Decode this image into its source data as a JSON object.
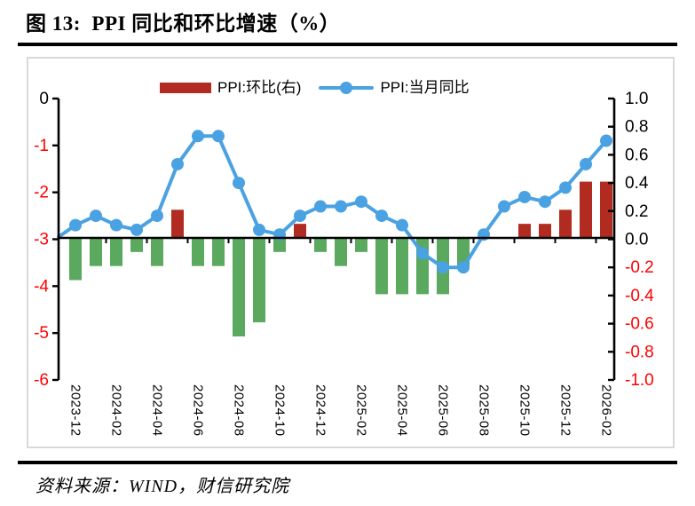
{
  "title": "图 13:  PPI 同比和环比增速（%）",
  "source": "资料来源：WIND，财信研究院",
  "legend": {
    "items": [
      {
        "label": "PPI:环比(右)",
        "type": "bar",
        "color": "#b22b20"
      },
      {
        "label": "PPI:当月同比",
        "type": "line",
        "color": "#4aa2e2"
      }
    ]
  },
  "chart_data": {
    "type": "bar+line combo",
    "categories": [
      "2023-12",
      "2024-01",
      "2024-02",
      "2024-03",
      "2024-04",
      "2024-05",
      "2024-06",
      "2024-07",
      "2024-08",
      "2024-09",
      "2024-10",
      "2024-11",
      "2024-12",
      "2025-01",
      "2025-02",
      "2025-03",
      "2025-04",
      "2025-05",
      "2025-06",
      "2025-07",
      "2025-08",
      "2025-09",
      "2025-10",
      "2025-11",
      "2025-12",
      "2026-01",
      "2026-02"
    ],
    "x_tick_labels": [
      "2023-12",
      "2024-02",
      "2024-04",
      "2024-06",
      "2024-08",
      "2024-10",
      "2024-12",
      "2025-02",
      "2025-04",
      "2025-06",
      "2025-08",
      "2025-10",
      "2025-12",
      "2026-02"
    ],
    "series": [
      {
        "name": "PPI:环比(右)",
        "type": "bar",
        "axis": "right",
        "values": [
          -0.3,
          -0.2,
          -0.2,
          -0.1,
          -0.2,
          0.2,
          -0.2,
          -0.2,
          -0.7,
          -0.6,
          -0.1,
          0.1,
          -0.1,
          -0.2,
          -0.1,
          -0.4,
          -0.4,
          -0.4,
          -0.4,
          -0.2,
          0.0,
          0.0,
          0.1,
          0.1,
          0.2,
          0.4,
          0.4
        ],
        "color_positive": "#b22b20",
        "color_negative": "#5aa95f"
      },
      {
        "name": "PPI:当月同比",
        "type": "line",
        "axis": "left",
        "values": [
          -2.7,
          -2.5,
          -2.7,
          -2.8,
          -2.5,
          -1.4,
          -0.8,
          -0.8,
          -1.8,
          -2.8,
          -2.9,
          -2.5,
          -2.3,
          -2.3,
          -2.2,
          -2.5,
          -2.7,
          -3.3,
          -3.6,
          -3.6,
          -2.9,
          -2.3,
          -2.1,
          -2.2,
          -1.9,
          -1.4,
          -0.9
        ],
        "color": "#4aa2e2",
        "line_enters_at_left_axis_value": -2.95
      }
    ],
    "left_axis": {
      "tick_labels": [
        "0",
        "-1",
        "-2",
        "-3",
        "-4",
        "-5",
        "-6"
      ],
      "range": [
        0,
        -6
      ]
    },
    "right_axis": {
      "tick_labels": [
        "1.0",
        "0.8",
        "0.6",
        "0.4",
        "0.2",
        "0.0",
        "-0.2",
        "-0.4",
        "-0.6",
        "-0.8",
        "-1.0"
      ],
      "range": [
        1.0,
        -1.0
      ]
    },
    "zero_line_left_value": -3,
    "grid": false,
    "legend_position": "top-center",
    "styles": {
      "axis_color": "#000000",
      "negative_tick_label_color": "#ff0000",
      "positive_tick_label_color": "#000000"
    }
  }
}
